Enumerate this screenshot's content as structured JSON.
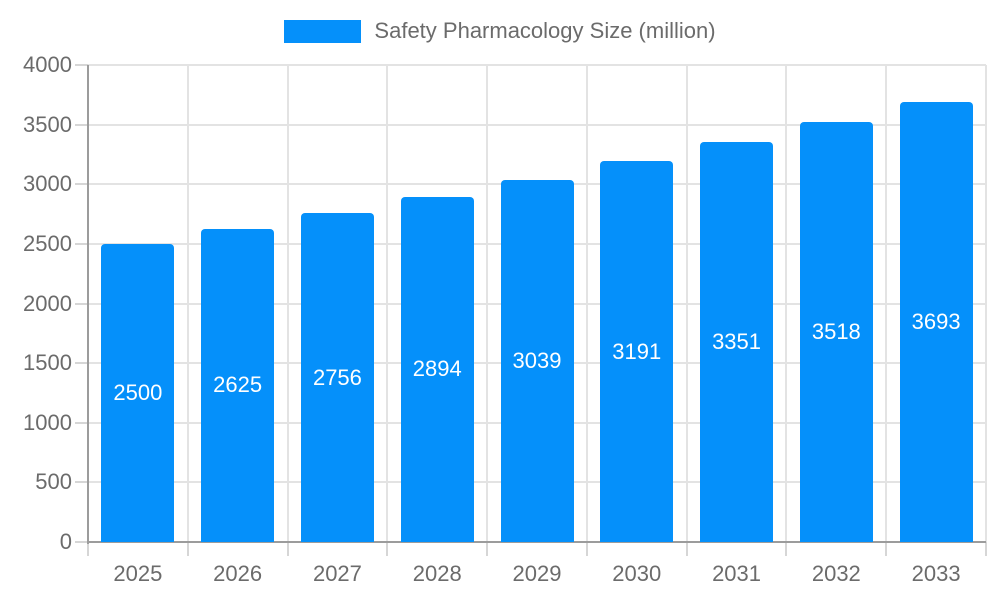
{
  "chart_data": {
    "type": "bar",
    "title": "",
    "xlabel": "",
    "ylabel": "",
    "categories": [
      "2025",
      "2026",
      "2027",
      "2028",
      "2029",
      "2030",
      "2031",
      "2032",
      "2033"
    ],
    "series": [
      {
        "name": "Safety Pharmacology Size (million)",
        "values": [
          2500,
          2625,
          2756,
          2894,
          3039,
          3191,
          3351,
          3518,
          3693
        ]
      }
    ],
    "value_labels_shown": true,
    "ylim": [
      0,
      4000
    ],
    "ytick_step": 500,
    "grid": true,
    "legend_position": "top-center"
  },
  "colors": {
    "bar": "#0590fa",
    "grid": "#e3e3e3",
    "axis": "#9c9c9c",
    "tick": "#d6d6d6",
    "label_text": "#6b6b6b",
    "value_text": "#ffffff",
    "background": "#ffffff"
  }
}
